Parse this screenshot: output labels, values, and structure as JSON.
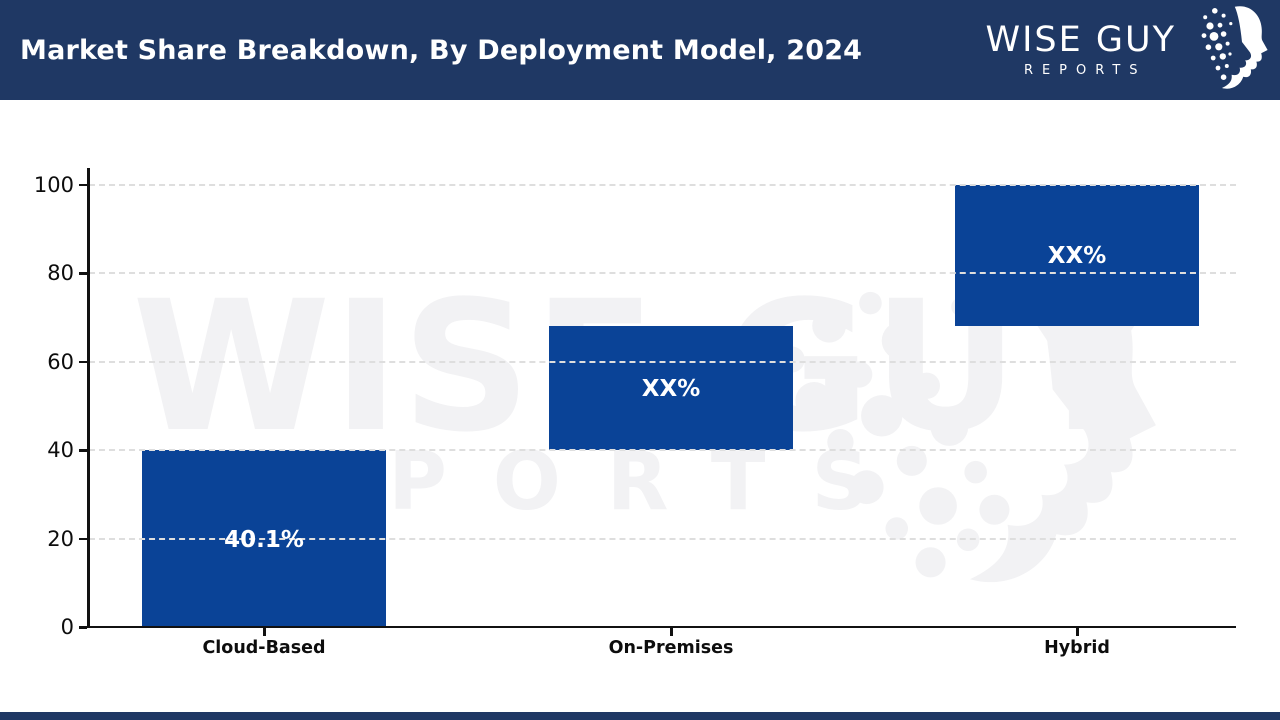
{
  "header": {
    "title": "Market Share Breakdown, By Deployment Model, 2024",
    "logo": {
      "line1": "WISE GUY",
      "line2": "REPORTS"
    }
  },
  "watermark": {
    "line1": "WISE GUY",
    "line2": "REPORTS"
  },
  "chart_data": {
    "type": "bar",
    "subtype": "waterfall",
    "title": "Market Share Breakdown, By Deployment Model, 2024",
    "categories": [
      "Cloud-Based",
      "On-Premises",
      "Hybrid"
    ],
    "bars": [
      {
        "category": "Cloud-Based",
        "from": 0,
        "to": 40,
        "label": "40.1%"
      },
      {
        "category": "On-Premises",
        "from": 40,
        "to": 68,
        "label": "XX%"
      },
      {
        "category": "Hybrid",
        "from": 68,
        "to": 100,
        "label": "XX%"
      }
    ],
    "ylim": [
      0,
      100
    ],
    "yticks": [
      0,
      20,
      40,
      60,
      80,
      100
    ],
    "xlabel": "",
    "ylabel": "",
    "grid": "horizontal-dashed",
    "legend": "none"
  },
  "colors": {
    "header_bg": "#1f3864",
    "footer_bg": "#1f3864",
    "bar": "#0a4397",
    "bar_label": "#ffffff",
    "grid": "#dedede",
    "axis": "#111111",
    "tick_label": "#0d0d0d",
    "watermark": "#f2f2f4"
  }
}
